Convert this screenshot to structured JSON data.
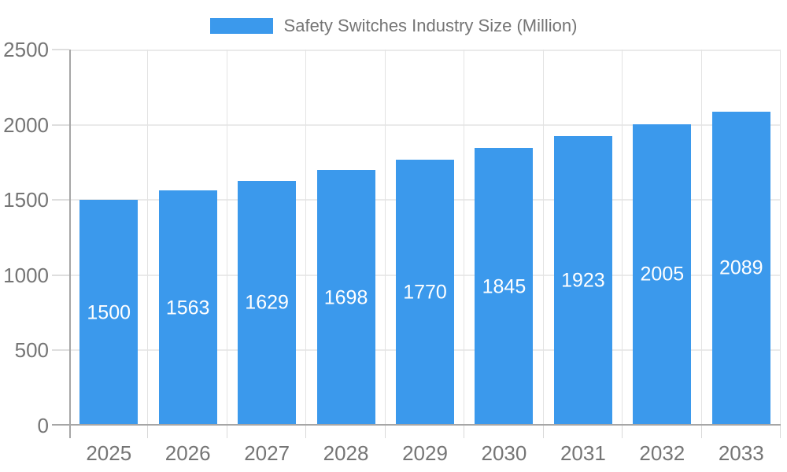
{
  "legend": {
    "label": "Safety Switches Industry Size (Million)"
  },
  "chart_data": {
    "type": "bar",
    "title": "Safety Switches Industry Size (Million)",
    "series_name": "Safety Switches Industry Size (Million)",
    "categories": [
      "2025",
      "2026",
      "2027",
      "2028",
      "2029",
      "2030",
      "2031",
      "2032",
      "2033"
    ],
    "values": [
      1500,
      1563,
      1629,
      1698,
      1770,
      1845,
      1923,
      2005,
      2089
    ],
    "xlabel": "",
    "ylabel": "",
    "ylim": [
      0,
      2500
    ],
    "yticks": [
      0,
      500,
      1000,
      1500,
      2000,
      2500
    ],
    "grid": true,
    "legend_position": "top-center",
    "value_labels": "inside-center",
    "colors": {
      "bar": "#3b99ec",
      "value_label": "#ffffff",
      "axis_label": "#757575",
      "gridline": "#e3e3e3",
      "axis_line": "#a6a6a6",
      "background": "#ffffff"
    }
  }
}
